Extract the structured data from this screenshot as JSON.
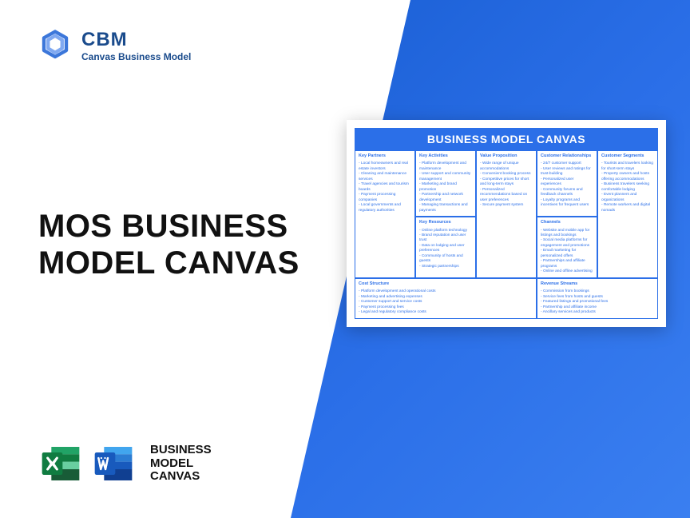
{
  "brand": {
    "abbr": "CBM",
    "sub": "Canvas Business Model"
  },
  "main_title_l1": "MOS BUSINESS",
  "main_title_l2": "MODEL CANVAS",
  "bottom_label_l1": "BUSINESS",
  "bottom_label_l2": "MODEL",
  "bottom_label_l3": "CANVAS",
  "colors": {
    "brand_blue": "#1a4b8c",
    "canvas_blue": "#2b6fe8",
    "excel_green": "#107c41",
    "word_blue": "#2b579a"
  },
  "canvas": {
    "title": "BUSINESS MODEL CANVAS",
    "cells": {
      "kp": {
        "h": "Key Partners",
        "items": [
          "Local homeowners and real estate investors",
          "Cleaning and maintenance services",
          "Travel agencies and tourism boards",
          "Payment processing companies",
          "Local governments and regulatory authorities"
        ]
      },
      "ka": {
        "h": "Key Activities",
        "items": [
          "Platform development and maintenance",
          "User support and community management",
          "Marketing and brand promotion",
          "Partnership and network development",
          "Managing transactions and payments"
        ]
      },
      "kr": {
        "h": "Key Resources",
        "items": [
          "Online platform technology",
          "Brand reputation and user trust",
          "Data on lodging and user preferences",
          "Community of hosts and guests",
          "Strategic partnerships"
        ]
      },
      "vp": {
        "h": "Value Proposition",
        "items": [
          "Wide range of unique accommodations",
          "Convenient booking process",
          "Competitive prices for short and long-term stays",
          "Personalized recommendations based on user preferences",
          "Secure payment system"
        ]
      },
      "cr": {
        "h": "Customer Relationships",
        "items": [
          "24/7 customer support",
          "User reviews and ratings for trust-building",
          "Personalized user experiences",
          "Community forums and feedback channels",
          "Loyalty programs and incentives for frequent users"
        ]
      },
      "ch": {
        "h": "Channels",
        "items": [
          "Website and mobile app for listings and bookings",
          "Social media platforms for engagement and promotions",
          "Email marketing for personalized offers",
          "Partnerships and affiliate programs",
          "Online and offline advertising"
        ]
      },
      "cs": {
        "h": "Customer Segments",
        "items": [
          "Tourists and travelers looking for short-term stays",
          "Property owners and hosts offering accommodations",
          "Business travelers seeking comfortable lodging",
          "Event planners and organizations",
          "Remote workers and digital nomads"
        ]
      },
      "cost": {
        "h": "Cost Structure",
        "items": [
          "Platform development and operational costs",
          "Marketing and advertising expenses",
          "Customer support and service costs",
          "Payment processing fees",
          "Legal and regulatory compliance costs"
        ]
      },
      "rev": {
        "h": "Revenue Streams",
        "items": [
          "Commission from bookings",
          "Service fees from hosts and guests",
          "Featured listings and promotional fees",
          "Partnership and affiliate income",
          "Ancillary services and products"
        ]
      }
    }
  }
}
